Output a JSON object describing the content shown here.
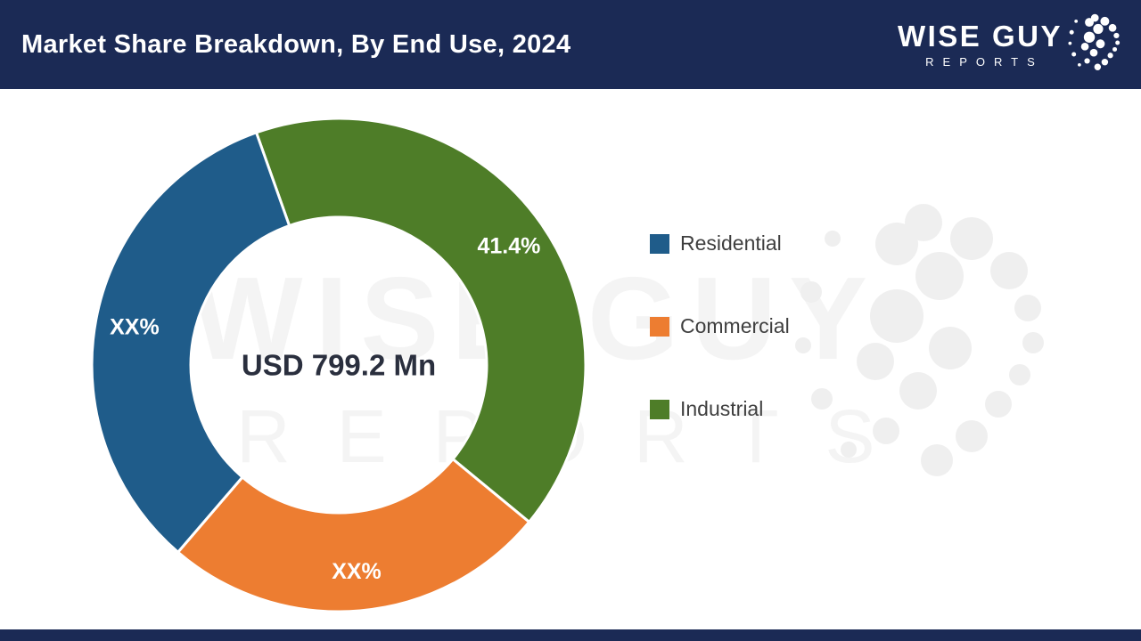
{
  "header": {
    "title": "Market Share Breakdown, By End Use, 2024",
    "logo": {
      "line1": "WISE GUY",
      "line2": "REPORTS"
    }
  },
  "colors": {
    "header_bg": "#1b2a55",
    "footer_bg": "#1b2a55",
    "center_text": "#2a2f3e",
    "residential": "#1f5c8a",
    "commercial": "#ed7d31",
    "industrial": "#4e7d28"
  },
  "watermark": {
    "line1": "WISE GUY",
    "line2": "REPORTS"
  },
  "chart_data": {
    "type": "pie",
    "variant": "donut",
    "title": "Market Share Breakdown, By End Use, 2024",
    "center_label": "USD 799.2 Mn",
    "start_angle_deg": -19.5,
    "legend_position": "right",
    "categories": [
      "Industrial",
      "Commercial",
      "Residential"
    ],
    "series": [
      {
        "name": "Industrial",
        "value": 41.4,
        "display_label": "41.4%",
        "color": "#4e7d28"
      },
      {
        "name": "Commercial",
        "value": 25.3,
        "display_label": "XX%",
        "color": "#ed7d31"
      },
      {
        "name": "Residential",
        "value": 33.3,
        "display_label": "XX%",
        "color": "#1f5c8a"
      }
    ],
    "legend": [
      {
        "label": "Residential",
        "color": "#1f5c8a"
      },
      {
        "label": "Commercial",
        "color": "#ed7d31"
      },
      {
        "label": "Industrial",
        "color": "#4e7d28"
      }
    ]
  }
}
